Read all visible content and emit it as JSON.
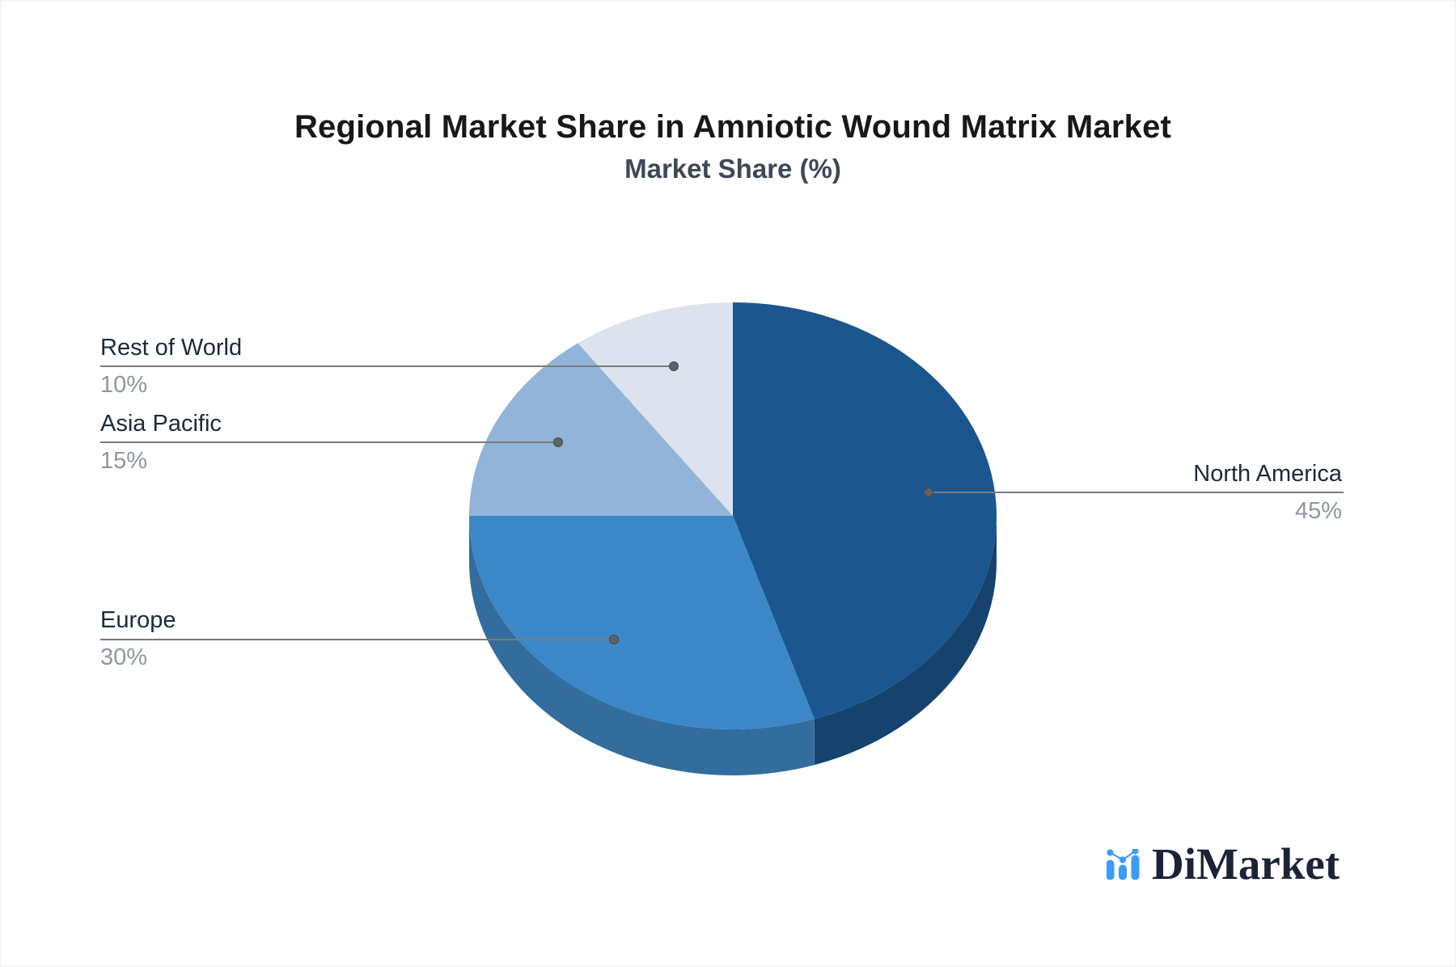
{
  "chart_data": {
    "type": "pie",
    "title": "Regional Market Share in Amniotic Wound Matrix Market",
    "subtitle": "Market Share (%)",
    "unit": "%",
    "legend_position": "callout-labels",
    "grid": false,
    "style": "3d-pie",
    "series": [
      {
        "name": "North America",
        "value": 45,
        "percent_label": "45%",
        "color": "#1b568f",
        "side_color": "#16436d"
      },
      {
        "name": "Europe",
        "value": 30,
        "percent_label": "30%",
        "color": "#3c87c8",
        "side_color": "#336d9e"
      },
      {
        "name": "Asia Pacific",
        "value": 15,
        "percent_label": "15%",
        "color": "#92b4d8",
        "side_color": "#7494b3"
      },
      {
        "name": "Rest of World",
        "value": 10,
        "percent_label": "10%",
        "color": "#dde3ee",
        "side_color": "#b8bfca"
      }
    ],
    "label_text_color": "#1c2a3a",
    "percent_text_color": "#8f97a1",
    "leader_line_color": "#7b7b7b"
  },
  "branding": {
    "logo_text": "DiMarket",
    "logo_text_color": "#1b2437",
    "logo_icon_color": "#3d9bf5"
  }
}
